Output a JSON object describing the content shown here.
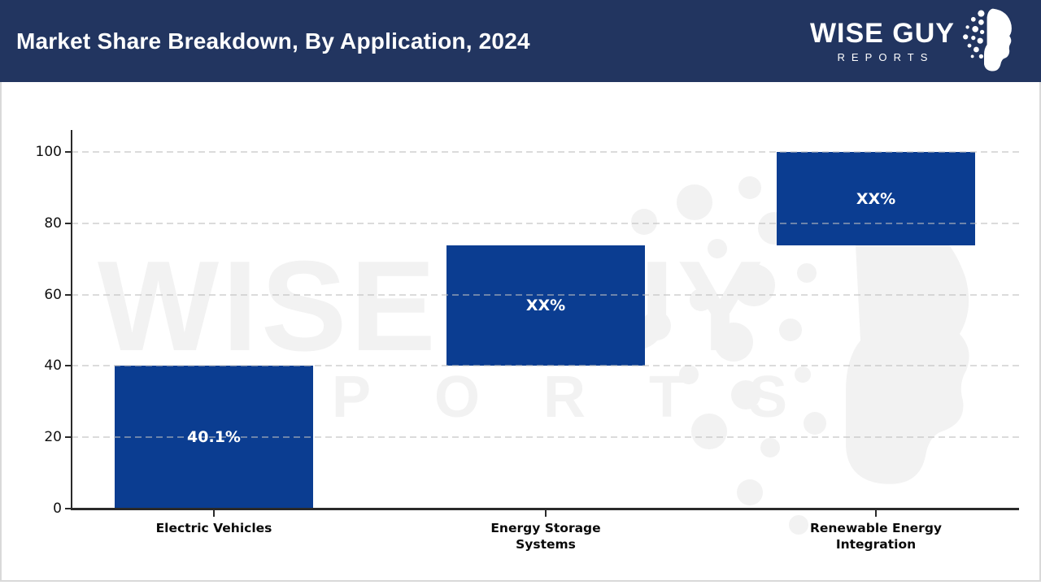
{
  "header": {
    "title": "Market Share Breakdown, By Application, 2024",
    "logo": {
      "line1": "WISE GUY",
      "line2": "REPORTS"
    }
  },
  "watermark": {
    "line1": "WISE GUY",
    "line2": "REPORTS"
  },
  "chart_data": {
    "type": "bar",
    "variant": "stacked-waterfall",
    "title": "Market Share Breakdown, By Application, 2024",
    "categories": [
      "Electric Vehicles",
      "Energy Storage Systems",
      "Renewable Energy Integration"
    ],
    "category_label_lines": [
      [
        "Electric Vehicles"
      ],
      [
        "Energy Storage",
        "Systems"
      ],
      [
        "Renewable Energy",
        "Integration"
      ]
    ],
    "segments": [
      {
        "category": "Electric Vehicles",
        "from": 0,
        "to": 40.1,
        "label": "40.1%"
      },
      {
        "category": "Energy Storage Systems",
        "from": 40.1,
        "to": 73.8,
        "label": "XX%"
      },
      {
        "category": "Renewable Energy Integration",
        "from": 73.8,
        "to": 100,
        "label": "XX%"
      }
    ],
    "yticks": [
      0,
      20,
      40,
      60,
      80,
      100
    ],
    "ylim": [
      0,
      100
    ],
    "grid": {
      "axis": "y",
      "style": "dashed",
      "visible": true
    },
    "legend": "none",
    "colors": {
      "bar": "#0b3d91",
      "bar_label": "#ffffff",
      "axis": "#2a2a2a",
      "grid": "#dcdcdc"
    }
  },
  "colors": {
    "header_bg": "#223560",
    "header_text": "#ffffff",
    "body_bg": "#ffffff",
    "border": "#d9d9d9",
    "watermark": "#f2f2f2"
  }
}
